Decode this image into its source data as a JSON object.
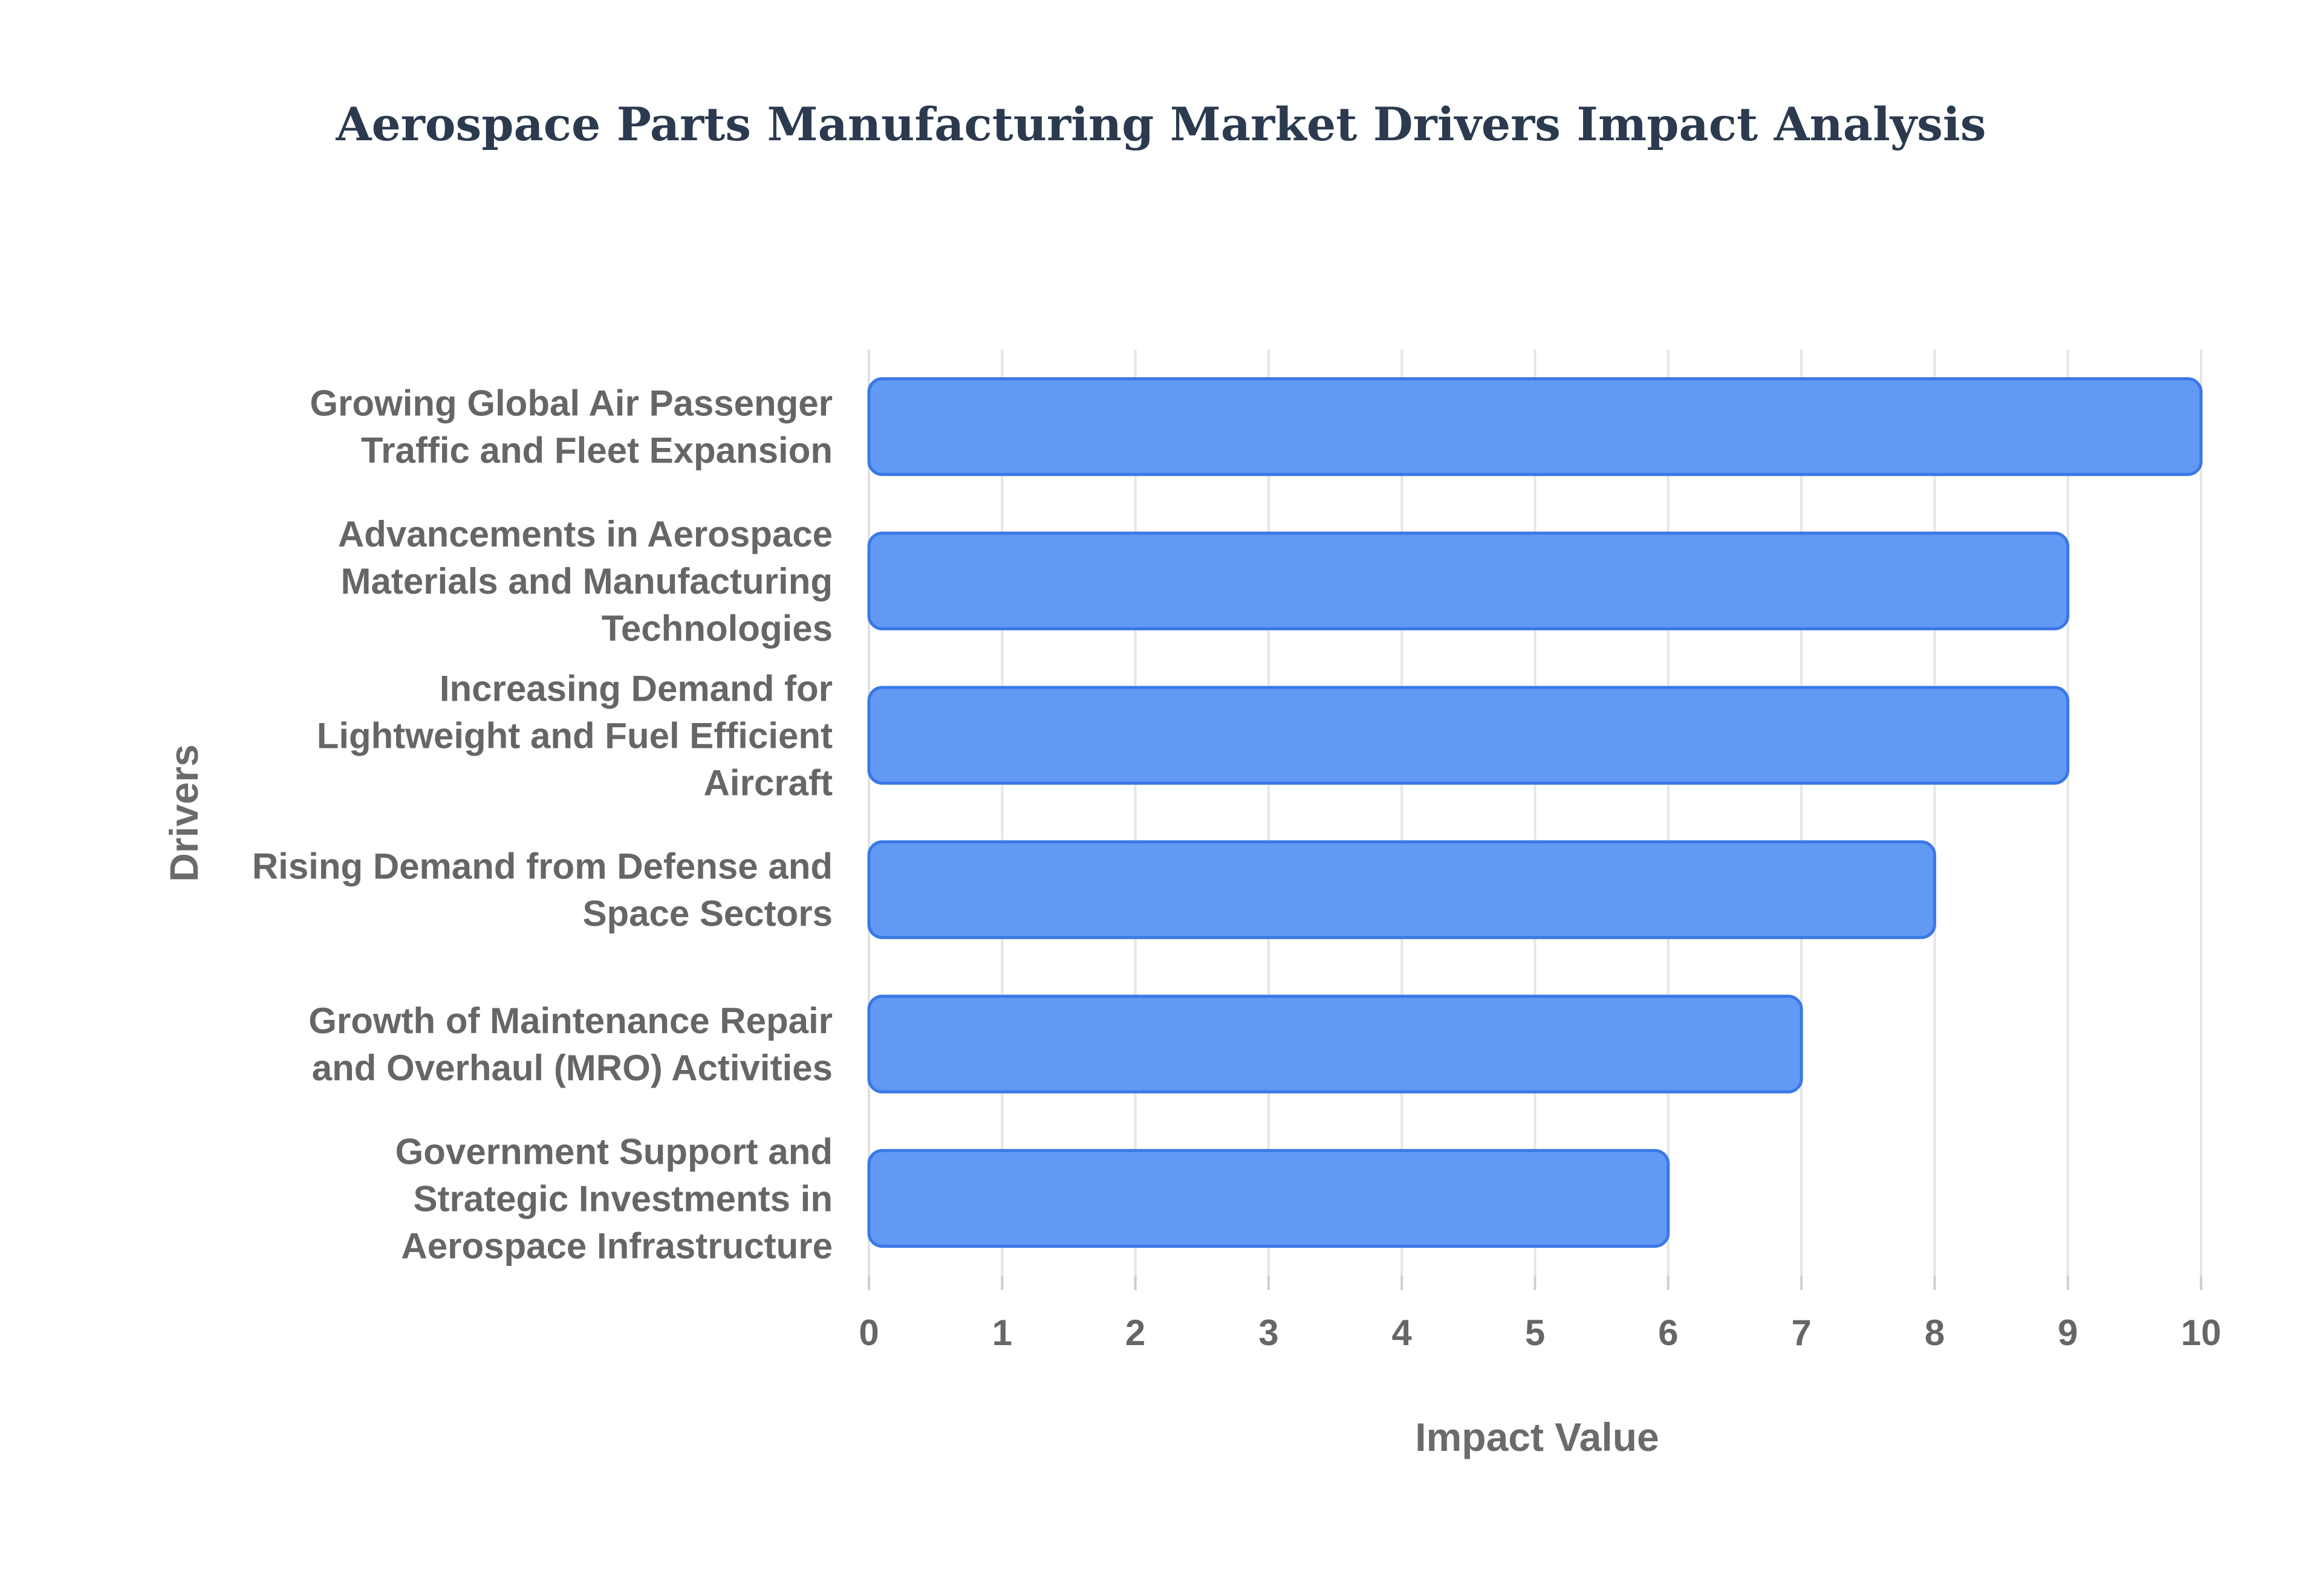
{
  "chart_data": {
    "type": "bar",
    "orientation": "horizontal",
    "title": "Aerospace Parts Manufacturing Market Drivers Impact Analysis",
    "xlabel": "Impact Value",
    "ylabel": "Drivers",
    "xlim": [
      0,
      10
    ],
    "x_ticks": [
      "0",
      "1",
      "2",
      "3",
      "4",
      "5",
      "6",
      "7",
      "8",
      "9",
      "10"
    ],
    "grid": true,
    "categories": [
      [
        "Growing Global Air Passenger",
        "Traffic and Fleet Expansion"
      ],
      [
        "Advancements in Aerospace",
        "Materials and Manufacturing",
        "Technologies"
      ],
      [
        "Increasing Demand for",
        "Lightweight and Fuel Efficient",
        "Aircraft"
      ],
      [
        "Rising Demand from Defense and",
        "Space Sectors"
      ],
      [
        "Growth of Maintenance Repair",
        "and Overhaul (MRO) Activities"
      ],
      [
        "Government Support and",
        "Strategic Investments in",
        "Aerospace Infrastructure"
      ]
    ],
    "values": [
      10,
      9,
      9,
      8,
      7,
      6
    ],
    "colors": {
      "bar_fill": "#6199f4",
      "bar_stroke": "#3a78e6",
      "title": "#2b3a4f",
      "text": "#666666"
    }
  }
}
